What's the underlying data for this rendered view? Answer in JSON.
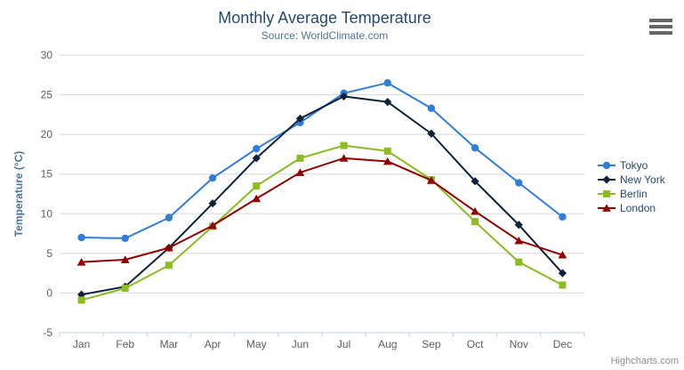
{
  "chart": {
    "context_menu_icon": "hamburger-icon",
    "credits_label": "Highcharts.com"
  },
  "colors": {
    "title": "#274b6d",
    "subtitle": "#4d759e",
    "axis_label": "#606060",
    "axis_title": "#4d759e",
    "axis_line": "#c0d0e0",
    "gridline": "#d8d8d8",
    "legend_text": "#274b6d",
    "credits": "#909090"
  },
  "chart_data": {
    "type": "line",
    "title": "Monthly Average Temperature",
    "subtitle": "Source: WorldClimate.com",
    "categories": [
      "Jan",
      "Feb",
      "Mar",
      "Apr",
      "May",
      "Jun",
      "Jul",
      "Aug",
      "Sep",
      "Oct",
      "Nov",
      "Dec"
    ],
    "xlabel": "",
    "ylabel": "Temperature (°C)",
    "ylim": [
      -5,
      30
    ],
    "ytick_interval": 5,
    "ytick_labels": [
      "-5",
      "0",
      "5",
      "10",
      "15",
      "20",
      "25",
      "30"
    ],
    "grid": true,
    "legend_position": "right",
    "series": [
      {
        "name": "Tokyo",
        "color": "#2f7ed8",
        "marker": "circle",
        "values": [
          7.0,
          6.9,
          9.5,
          14.5,
          18.2,
          21.5,
          25.2,
          26.5,
          23.3,
          18.3,
          13.9,
          9.6
        ]
      },
      {
        "name": "New York",
        "color": "#0d233a",
        "marker": "diamond",
        "values": [
          -0.2,
          0.8,
          5.7,
          11.3,
          17.0,
          22.0,
          24.8,
          24.1,
          20.1,
          14.1,
          8.6,
          2.5
        ]
      },
      {
        "name": "Berlin",
        "color": "#8bbc21",
        "marker": "square",
        "values": [
          -0.9,
          0.6,
          3.5,
          8.4,
          13.5,
          17.0,
          18.6,
          17.9,
          14.3,
          9.0,
          3.9,
          1.0
        ]
      },
      {
        "name": "London",
        "color": "#910000",
        "marker": "triangle",
        "values": [
          3.9,
          4.2,
          5.7,
          8.5,
          11.9,
          15.2,
          17.0,
          16.6,
          14.2,
          10.3,
          6.6,
          4.8
        ]
      }
    ]
  }
}
